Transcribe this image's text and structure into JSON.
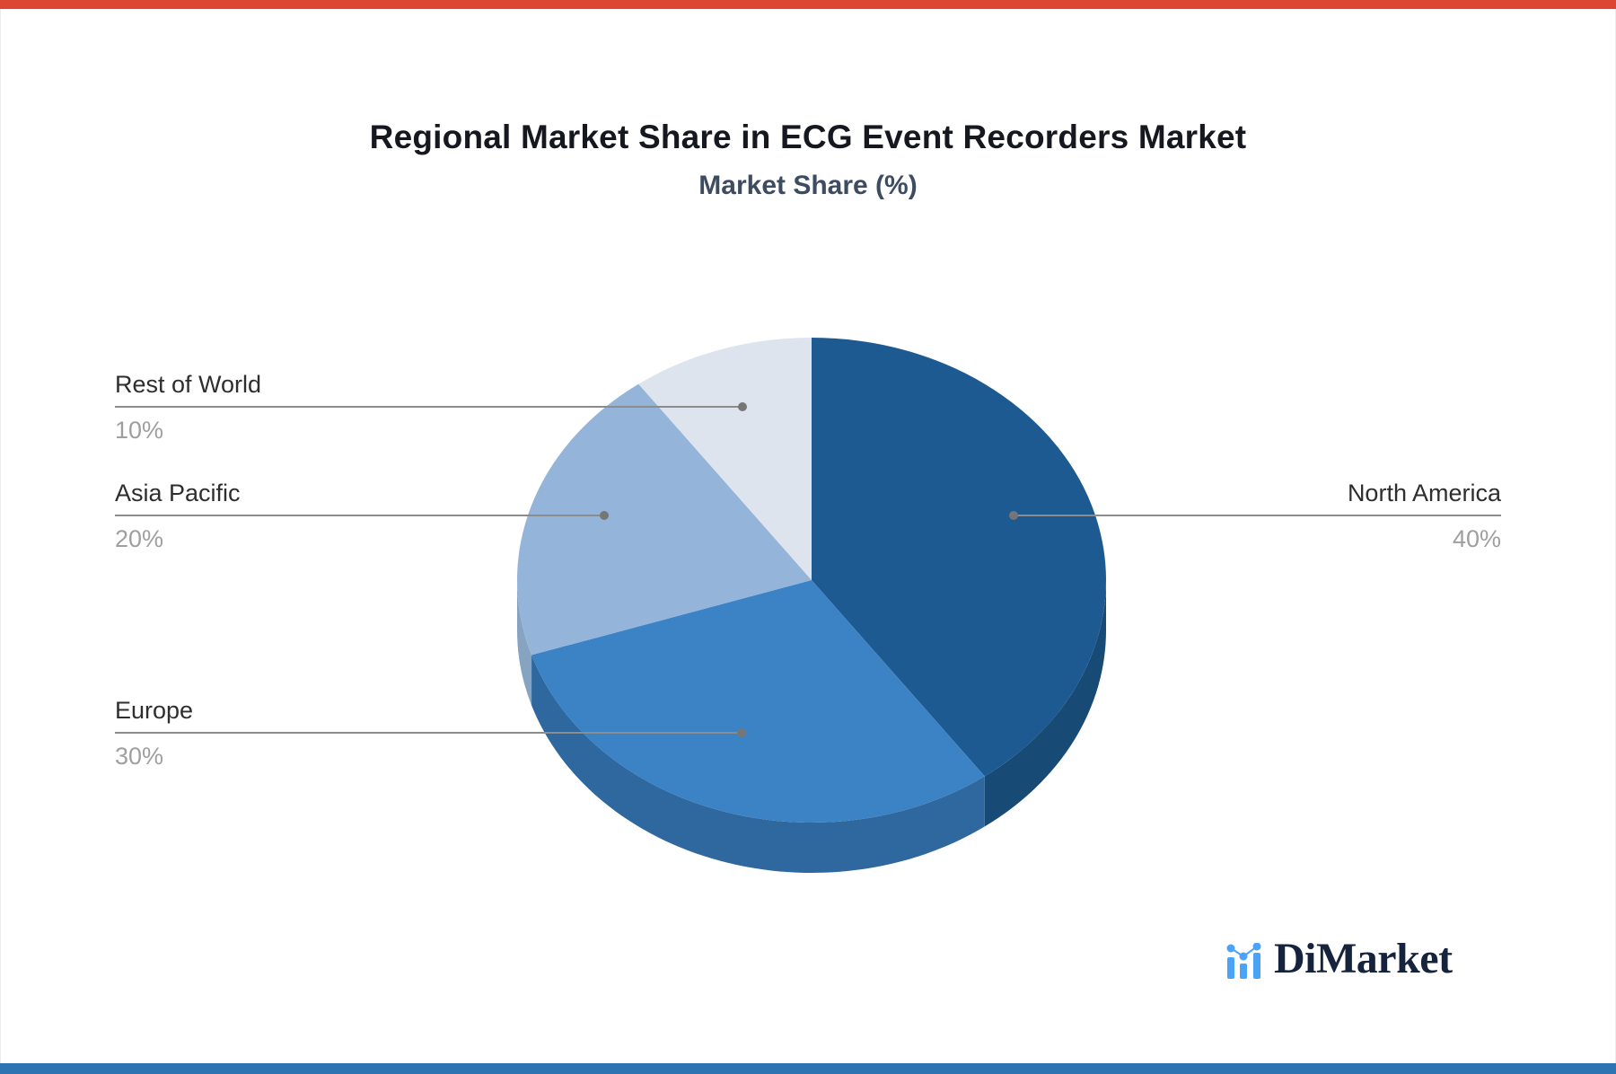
{
  "branding": {
    "top_bar_color": "#dd4632",
    "bottom_bar_color": "#2e73b2",
    "logo_text": "DiMarket",
    "logo_text_color": "#16233c",
    "logo_icon": "bar-chart-trend-icon",
    "logo_icon_color": "#4ba3f7"
  },
  "header": {
    "title": "Regional Market Share in ECG Event Recorders Market",
    "subtitle": "Market Share (%)"
  },
  "chart_data": {
    "type": "pie",
    "style": "3d-pie",
    "title": "Regional Market Share in ECG Event Recorders Market",
    "subtitle": "Market Share (%)",
    "unit": "%",
    "direction": "clockwise",
    "start_angle_deg": 0,
    "labels": [
      "North America",
      "Europe",
      "Asia Pacific",
      "Rest of World"
    ],
    "values": [
      40,
      30,
      20,
      10
    ],
    "colors": [
      "#1e5a92",
      "#3b83c5",
      "#94b5d9",
      "#dde4ee"
    ],
    "side_colors": [
      "#174a75",
      "#2f689e",
      "#87a3c2",
      "#c5cfdd"
    ],
    "legend": "callout-labels",
    "callout_line_color": "#8c8c8c"
  },
  "callouts": {
    "north_america": {
      "label": "North America",
      "pct": "40%"
    },
    "europe": {
      "label": "Europe",
      "pct": "30%"
    },
    "asia_pacific": {
      "label": "Asia Pacific",
      "pct": "20%"
    },
    "rest_of_world": {
      "label": "Rest of World",
      "pct": "10%"
    }
  }
}
